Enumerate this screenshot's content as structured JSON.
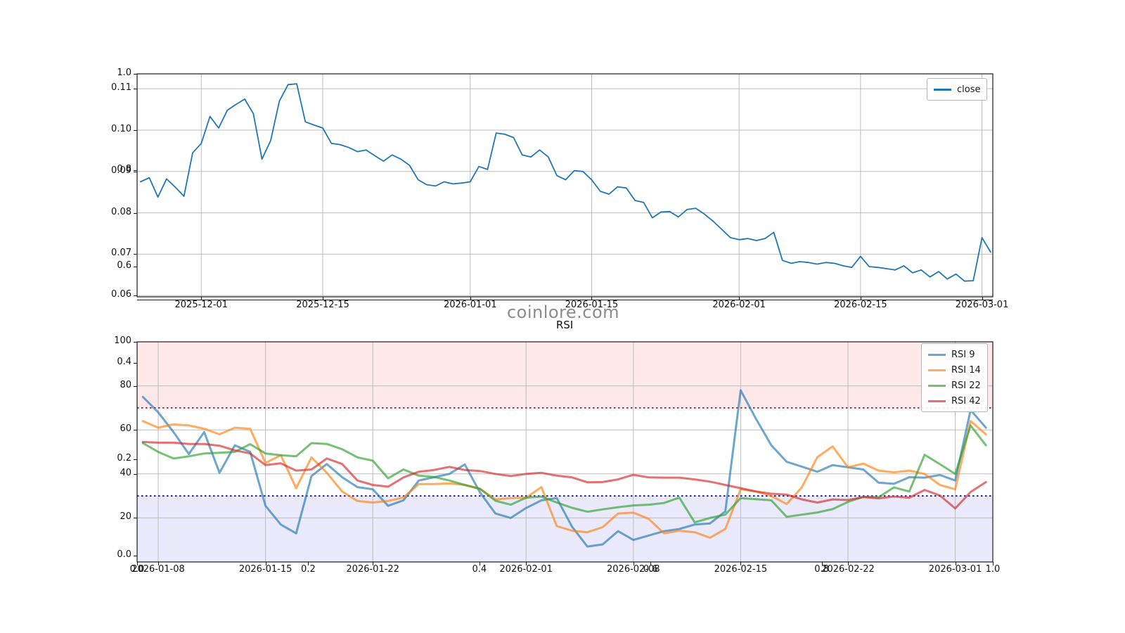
{
  "watermark": "coinlore.com",
  "overlay_axis": {
    "y_labels": [
      "1.0",
      "0.8",
      "0.6",
      "0.4",
      "0.2",
      "0.0"
    ],
    "x_labels": [
      "0.0",
      "0.2",
      "0.4",
      "0.6",
      "0.8",
      "1.0"
    ]
  },
  "chart_data": [
    {
      "id": "price",
      "type": "line",
      "title": "",
      "xlabel": "",
      "ylabel": "",
      "grid": true,
      "legend_position": "upper right",
      "freq": "daily",
      "start_date": "2025-11-24",
      "end_date": "2026-03-02",
      "ylim": [
        0.0597,
        0.1136
      ],
      "x_ticks": [
        {
          "label": "2025-12-01",
          "i": 7
        },
        {
          "label": "2025-12-15",
          "i": 21
        },
        {
          "label": "2026-01-01",
          "i": 38
        },
        {
          "label": "2026-01-15",
          "i": 52
        },
        {
          "label": "2026-02-01",
          "i": 69
        },
        {
          "label": "2026-02-15",
          "i": 83
        },
        {
          "label": "2026-03-01",
          "i": 97
        }
      ],
      "y_ticks": [
        {
          "label": "0.06",
          "v": 0.06
        },
        {
          "label": "0.07",
          "v": 0.07
        },
        {
          "label": "0.08",
          "v": 0.08
        },
        {
          "label": "0.09",
          "v": 0.09
        },
        {
          "label": "0.10",
          "v": 0.1
        },
        {
          "label": "0.11",
          "v": 0.11
        }
      ],
      "legend": [
        {
          "label": "close",
          "color": "#1f77b4"
        }
      ],
      "series": [
        {
          "name": "close",
          "color": "#1f77b4",
          "width": 1.8,
          "values": [
            0.0875,
            0.0885,
            0.0838,
            0.0882,
            0.0862,
            0.084,
            0.0945,
            0.0968,
            0.1033,
            0.1005,
            0.1048,
            0.1062,
            0.1075,
            0.104,
            0.093,
            0.0975,
            0.107,
            0.111,
            0.1112,
            0.102,
            0.1012,
            0.1005,
            0.0968,
            0.0965,
            0.0958,
            0.0948,
            0.0952,
            0.0938,
            0.0925,
            0.094,
            0.093,
            0.0915,
            0.088,
            0.0868,
            0.0865,
            0.0875,
            0.087,
            0.0872,
            0.0875,
            0.0912,
            0.0905,
            0.0993,
            0.099,
            0.0982,
            0.094,
            0.0935,
            0.0952,
            0.0935,
            0.089,
            0.088,
            0.0902,
            0.09,
            0.088,
            0.0852,
            0.0845,
            0.0863,
            0.086,
            0.083,
            0.0825,
            0.0788,
            0.0802,
            0.0803,
            0.079,
            0.0808,
            0.0811,
            0.0797,
            0.078,
            0.076,
            0.074,
            0.0735,
            0.0738,
            0.0733,
            0.0738,
            0.0753,
            0.0685,
            0.0678,
            0.0682,
            0.068,
            0.0676,
            0.068,
            0.0678,
            0.0672,
            0.0668,
            0.0695,
            0.067,
            0.0668,
            0.0665,
            0.0662,
            0.0672,
            0.0655,
            0.0662,
            0.0645,
            0.0658,
            0.064,
            0.0652,
            0.0635,
            0.0636,
            0.074,
            0.0705
          ]
        }
      ]
    },
    {
      "id": "rsi",
      "type": "line",
      "title": "RSI",
      "xlabel": "",
      "ylabel": "",
      "grid": true,
      "legend_position": "upper right",
      "freq": "daily",
      "start_date": "2026-01-07",
      "end_date": "2026-03-03",
      "ylim": [
        0,
        100
      ],
      "x_ticks": [
        {
          "label": "2026-01-08",
          "i": 1
        },
        {
          "label": "2026-01-15",
          "i": 8
        },
        {
          "label": "2026-01-22",
          "i": 15
        },
        {
          "label": "2026-02-01",
          "i": 25
        },
        {
          "label": "2026-02-08",
          "i": 32
        },
        {
          "label": "2026-02-15",
          "i": 39
        },
        {
          "label": "2026-02-22",
          "i": 46
        },
        {
          "label": "2026-03-01",
          "i": 53
        }
      ],
      "y_ticks": [
        {
          "label": "100",
          "v": 100
        },
        {
          "label": "80",
          "v": 80
        },
        {
          "label": "60",
          "v": 60
        },
        {
          "label": "40",
          "v": 40
        },
        {
          "label": "20",
          "v": 20
        }
      ],
      "bands": [
        {
          "from": 70,
          "to": 100,
          "color": "rgba(255,30,50,0.10)",
          "name": "overbought-band"
        },
        {
          "from": 0,
          "to": 30,
          "color": "rgba(60,60,230,0.11)",
          "name": "oversold-band"
        }
      ],
      "hlines": [
        {
          "v": 70,
          "color": "#dd0022",
          "name": "overbought-threshold"
        },
        {
          "v": 30,
          "color": "#0000dd",
          "name": "oversold-threshold"
        }
      ],
      "legend": [
        {
          "label": "RSI 9",
          "color": "rgba(31,119,180,0.65)"
        },
        {
          "label": "RSI 14",
          "color": "rgba(255,127,14,0.65)"
        },
        {
          "label": "RSI 22",
          "color": "rgba(44,160,44,0.65)"
        },
        {
          "label": "RSI 42",
          "color": "rgba(214,39,40,0.65)"
        }
      ],
      "series": [
        {
          "name": "RSI 9",
          "color": "rgba(31,119,180,0.65)",
          "width": 3,
          "values": [
            75,
            68,
            59,
            49,
            59,
            40.5,
            53,
            50,
            25.5,
            17,
            13,
            39,
            44.5,
            38.5,
            34,
            33,
            25.5,
            28,
            37,
            38.5,
            40,
            44.3,
            31.5,
            22,
            20,
            24.5,
            28,
            29,
            16,
            7,
            8,
            14,
            10,
            12,
            14,
            15,
            17,
            17.5,
            23,
            78,
            65,
            53,
            45.5,
            43.3,
            41,
            44,
            43,
            42,
            36,
            35.5,
            38.5,
            38.3,
            39.5,
            37,
            69,
            61
          ]
        },
        {
          "name": "RSI 14",
          "color": "rgba(255,127,14,0.65)",
          "width": 3,
          "values": [
            64,
            61,
            62.5,
            62,
            60.5,
            58,
            61,
            60.5,
            45,
            48.5,
            33.5,
            47.5,
            40.5,
            32,
            27.7,
            27,
            27.7,
            29.3,
            35.4,
            35.4,
            35.7,
            35,
            33.2,
            28.4,
            29,
            29.2,
            34,
            16.3,
            14.2,
            13.5,
            15.8,
            22,
            22.4,
            19.6,
            13,
            14.2,
            13.5,
            11,
            15,
            33,
            32,
            30,
            26.3,
            34,
            47.6,
            52.5,
            43,
            44.7,
            41.5,
            40.7,
            41.5,
            40,
            35,
            33,
            64,
            58
          ]
        },
        {
          "name": "RSI 22",
          "color": "rgba(44,160,44,0.65)",
          "width": 3,
          "values": [
            54,
            50,
            47,
            48,
            49.3,
            49.6,
            50,
            53.5,
            49.3,
            48.5,
            48,
            54,
            53.6,
            51.2,
            47.5,
            46,
            38,
            42,
            39.2,
            38.6,
            37,
            35,
            33.2,
            27.8,
            26,
            29.2,
            29.7,
            27,
            24.6,
            22.8,
            23.9,
            24.9,
            25.7,
            26,
            26.8,
            29.2,
            18,
            20,
            21.5,
            29,
            28.5,
            28,
            20.5,
            21.5,
            22.5,
            24,
            27.3,
            29.6,
            29.4,
            33.9,
            32,
            48.7,
            44.4,
            40,
            62,
            53
          ]
        },
        {
          "name": "RSI 42",
          "color": "rgba(214,39,40,0.65)",
          "width": 3,
          "values": [
            54.5,
            54.2,
            54.2,
            53.6,
            53.6,
            52.8,
            50.7,
            49.3,
            44,
            44.8,
            41.5,
            42,
            47,
            44.5,
            37,
            35,
            34.2,
            38.4,
            41,
            41.8,
            43.2,
            41.8,
            41.3,
            40,
            39,
            40,
            40.5,
            39.2,
            38.4,
            36.2,
            36.3,
            37.5,
            39.6,
            38.4,
            38.3,
            38.3,
            37.5,
            36.5,
            35,
            33.5,
            32,
            31,
            30.6,
            28.4,
            27,
            28.4,
            28.1,
            29.5,
            28.9,
            29.7,
            29.2,
            32.7,
            30.2,
            24.3,
            31.8,
            36.3
          ]
        }
      ]
    }
  ]
}
